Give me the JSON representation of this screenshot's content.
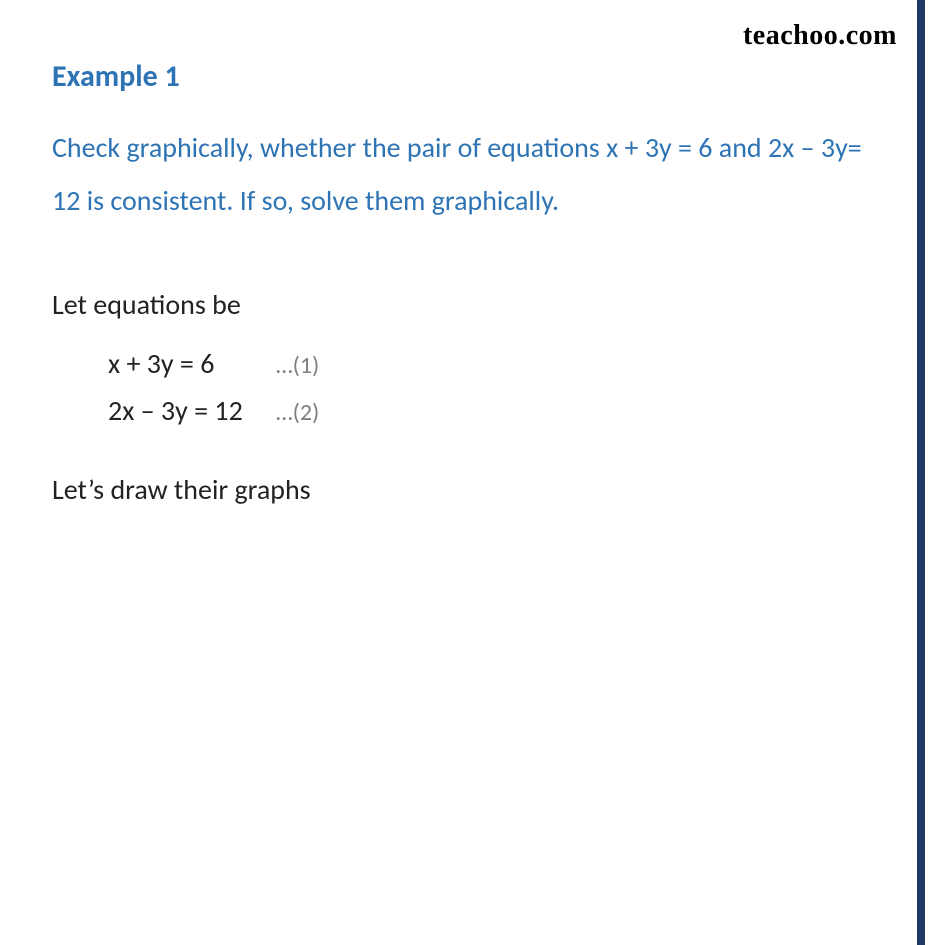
{
  "watermark": "teachoo.com",
  "heading": "Example 1",
  "prompt": "Check graphically, whether the pair of equations x + 3y = 6 and 2x – 3y= 12 is consistent. If so, solve them graphically.",
  "intro": "Let equations be",
  "equations": [
    {
      "expr": "x + 3y = 6",
      "tag": "…(1)"
    },
    {
      "expr": "2x – 3y = 12",
      "tag": "…(2)"
    }
  ],
  "closing": "Let’s draw their graphs",
  "colors": {
    "accent": "#2e74b5",
    "rule": "#1f3864",
    "muted": "#7f7f7f",
    "text": "#222222",
    "bg": "#ffffff"
  }
}
